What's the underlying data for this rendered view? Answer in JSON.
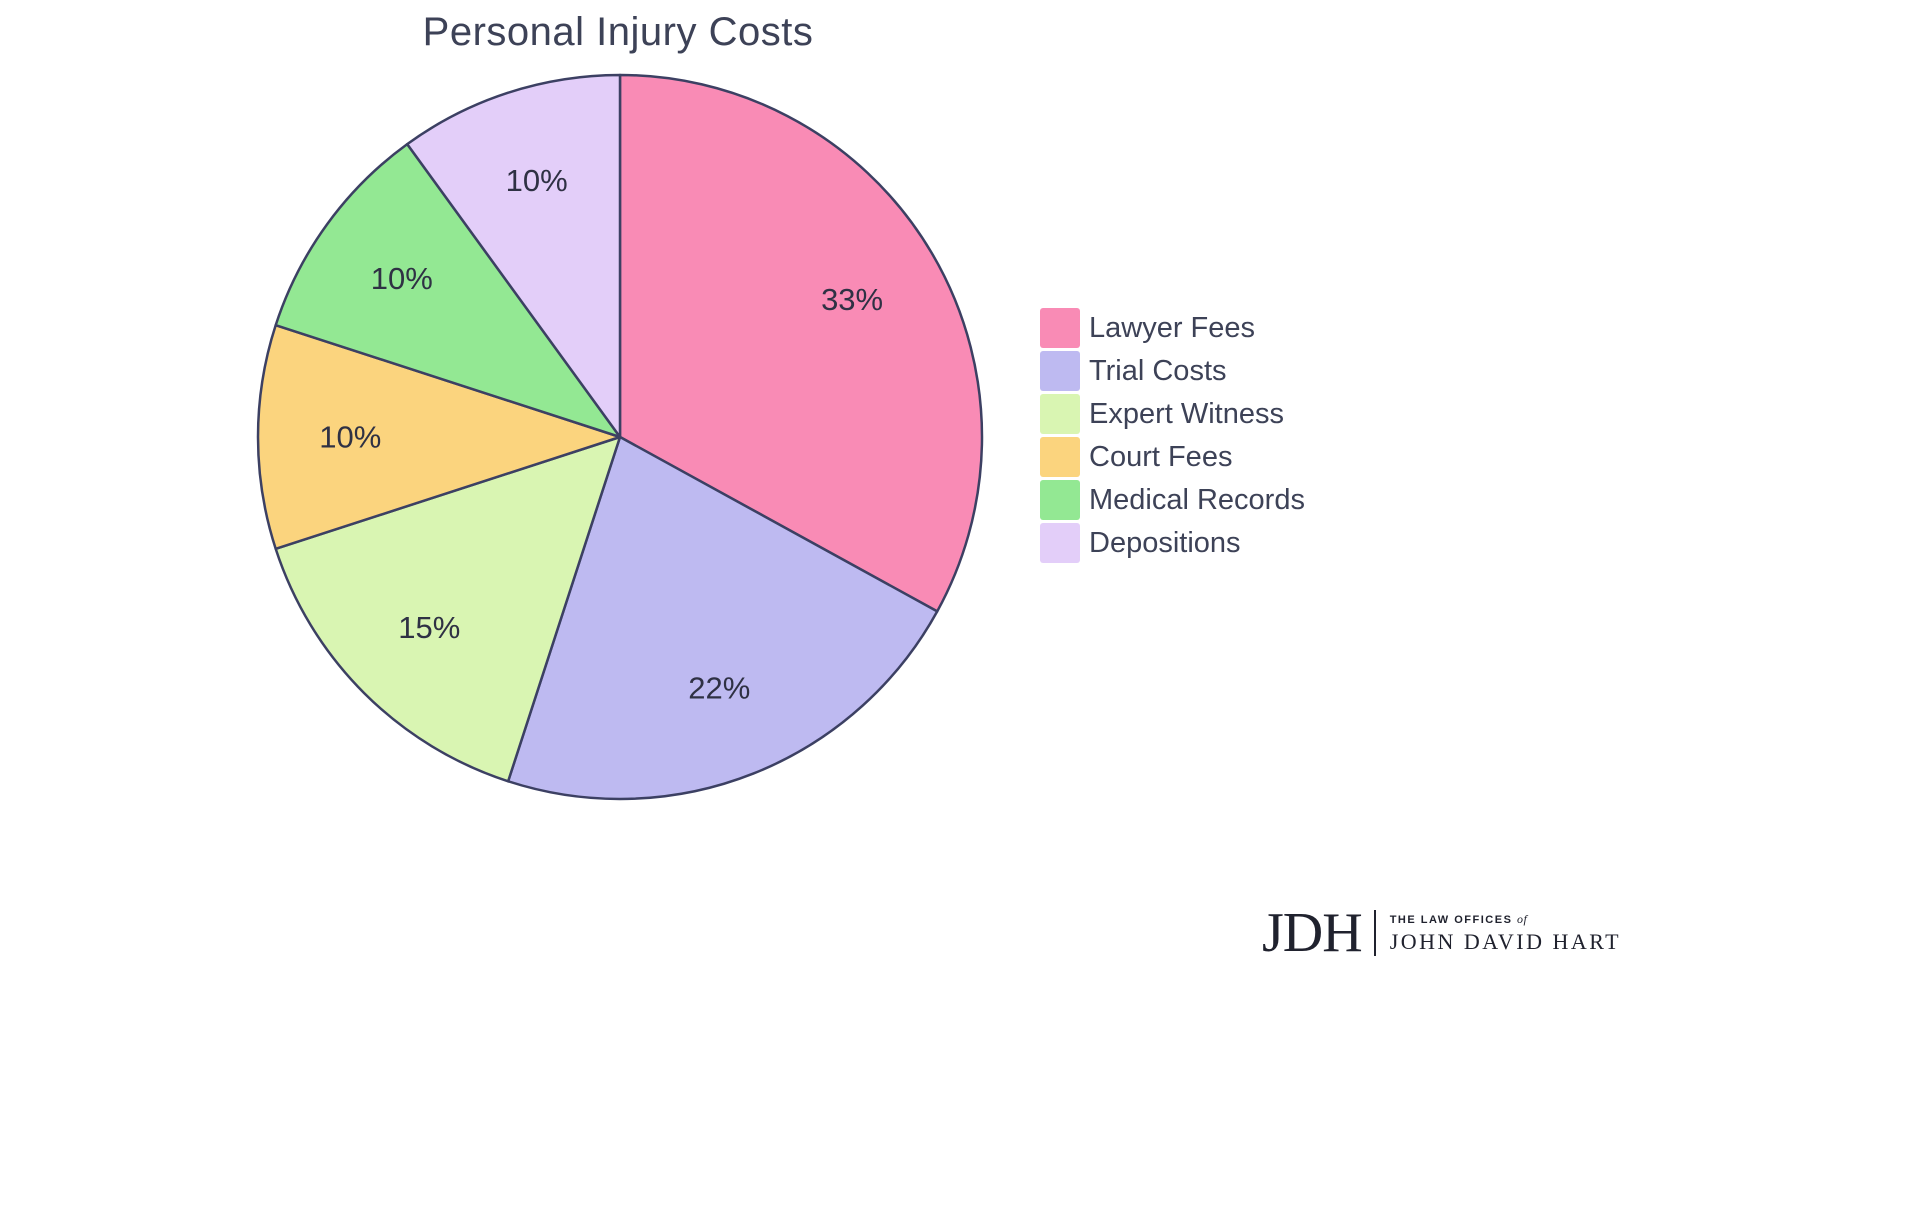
{
  "chart_data": {
    "type": "pie",
    "title": "Personal Injury Costs",
    "categories": [
      "Lawyer Fees",
      "Trial Costs",
      "Expert Witness",
      "Court Fees",
      "Medical Records",
      "Depositions"
    ],
    "values": [
      33,
      22,
      15,
      10,
      10,
      10
    ],
    "labels": [
      "33%",
      "22%",
      "15%",
      "10%",
      "10%",
      "10%"
    ],
    "colors": [
      "#F98BB5",
      "#BEBAF1",
      "#D9F5B2",
      "#FBD47E",
      "#93E893",
      "#E3CEF9"
    ],
    "stroke_color": "#3C4063",
    "label_color": "#2f3144",
    "legend_position": "right",
    "start_angle_deg": 0,
    "direction": "clockwise"
  },
  "branding": {
    "monogram": "JDH",
    "tagline_prefix": "THE LAW OFFICES",
    "tagline_of": "of",
    "name": "JOHN DAVID HART"
  }
}
